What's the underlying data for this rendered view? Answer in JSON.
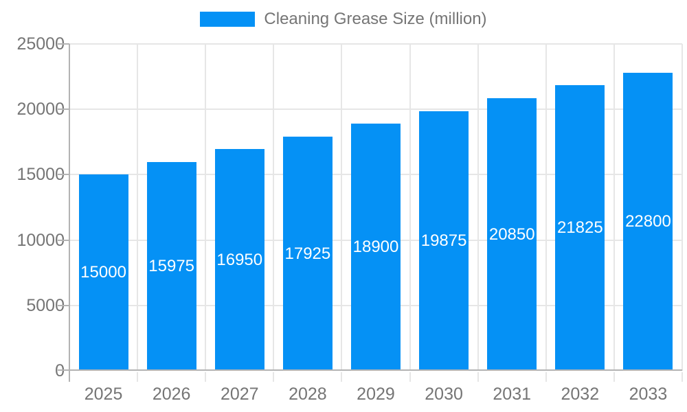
{
  "colors": {
    "bar": "#0591f5",
    "grid": "#e6e6e6",
    "axis": "#b3b3b3",
    "tick_text": "#757575",
    "value_text": "#ffffff"
  },
  "legend": {
    "label": "Cleaning Grease Size (million)"
  },
  "chart_data": {
    "type": "bar",
    "title": "",
    "categories": [
      "2025",
      "2026",
      "2027",
      "2028",
      "2029",
      "2030",
      "2031",
      "2032",
      "2033"
    ],
    "series": [
      {
        "name": "Cleaning Grease Size (million)",
        "values": [
          15000,
          15975,
          16950,
          17925,
          18900,
          19875,
          20850,
          21825,
          22800
        ]
      }
    ],
    "bar_labels": [
      15000,
      15975,
      16950,
      17925,
      18900,
      19875,
      20850,
      21825,
      22800
    ],
    "bar_label_position": "inside-center",
    "xlabel": "",
    "ylabel": "",
    "ylim": [
      0,
      25000
    ],
    "yticks": [
      0,
      5000,
      10000,
      15000,
      20000,
      25000
    ],
    "grid": true,
    "legend_position": "top-center"
  }
}
